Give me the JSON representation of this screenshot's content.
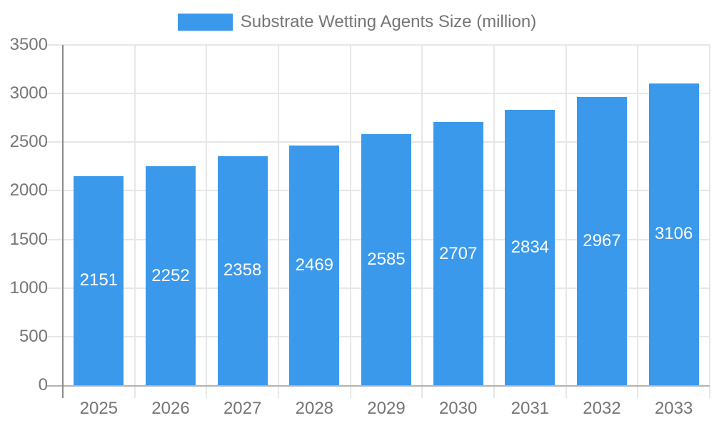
{
  "legend": {
    "label": "Substrate Wetting Agents Size (million)"
  },
  "chart_data": {
    "type": "bar",
    "title": "Substrate Wetting Agents Size (million)",
    "categories": [
      "2025",
      "2026",
      "2027",
      "2028",
      "2029",
      "2030",
      "2031",
      "2032",
      "2033"
    ],
    "values": [
      2151,
      2252,
      2358,
      2469,
      2585,
      2707,
      2834,
      2967,
      3106
    ],
    "series_name": "Substrate Wetting Agents Size (million)",
    "xlabel": "",
    "ylabel": "",
    "ylim": [
      0,
      3500
    ],
    "yticks": [
      0,
      500,
      1000,
      1500,
      2000,
      2500,
      3000,
      3500
    ],
    "grid": true,
    "legend_position": "top",
    "value_labels": "inside-center",
    "colors": {
      "bar": "#3B99EC",
      "value_label": "#FFFFFF",
      "grid_line": "#E7E7E7",
      "axis_line": "#8C8C8C",
      "baseline": "#B3B3B3",
      "text": "#757575",
      "background": "#FFFFFF"
    }
  }
}
